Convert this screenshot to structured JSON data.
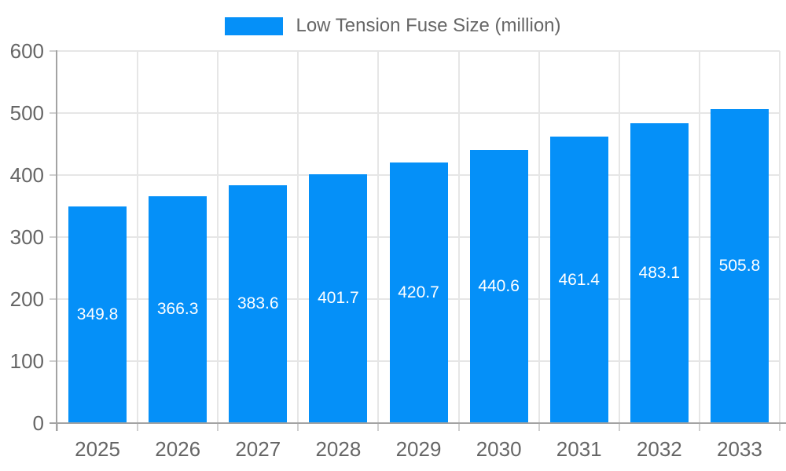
{
  "chart_data": {
    "type": "bar",
    "title": "Low Tension Fuse Size (million)",
    "legend": {
      "label": "Low Tension Fuse Size (million)",
      "position": "top-center"
    },
    "categories": [
      "2025",
      "2026",
      "2027",
      "2028",
      "2029",
      "2030",
      "2031",
      "2032",
      "2033"
    ],
    "values": [
      349.8,
      366.3,
      383.6,
      401.7,
      420.7,
      440.6,
      461.4,
      483.1,
      505.8
    ],
    "value_labels": [
      "349.8",
      "366.3",
      "383.6",
      "401.7",
      "420.7",
      "440.6",
      "461.4",
      "483.1",
      "505.8"
    ],
    "xlabel": "",
    "ylabel": "",
    "ylim": [
      0,
      600
    ],
    "yticks": [
      0,
      100,
      200,
      300,
      400,
      500,
      600
    ],
    "grid": true,
    "value_labels_inside_bars": true,
    "colors": {
      "bar": "#0590F8",
      "grid": "#E6E6E6",
      "tick": "#CFCFCF",
      "axis": "#A3A3A3",
      "tick_text": "#666666",
      "value_text": "#FFFFFF",
      "background": "#FFFFFF"
    }
  }
}
